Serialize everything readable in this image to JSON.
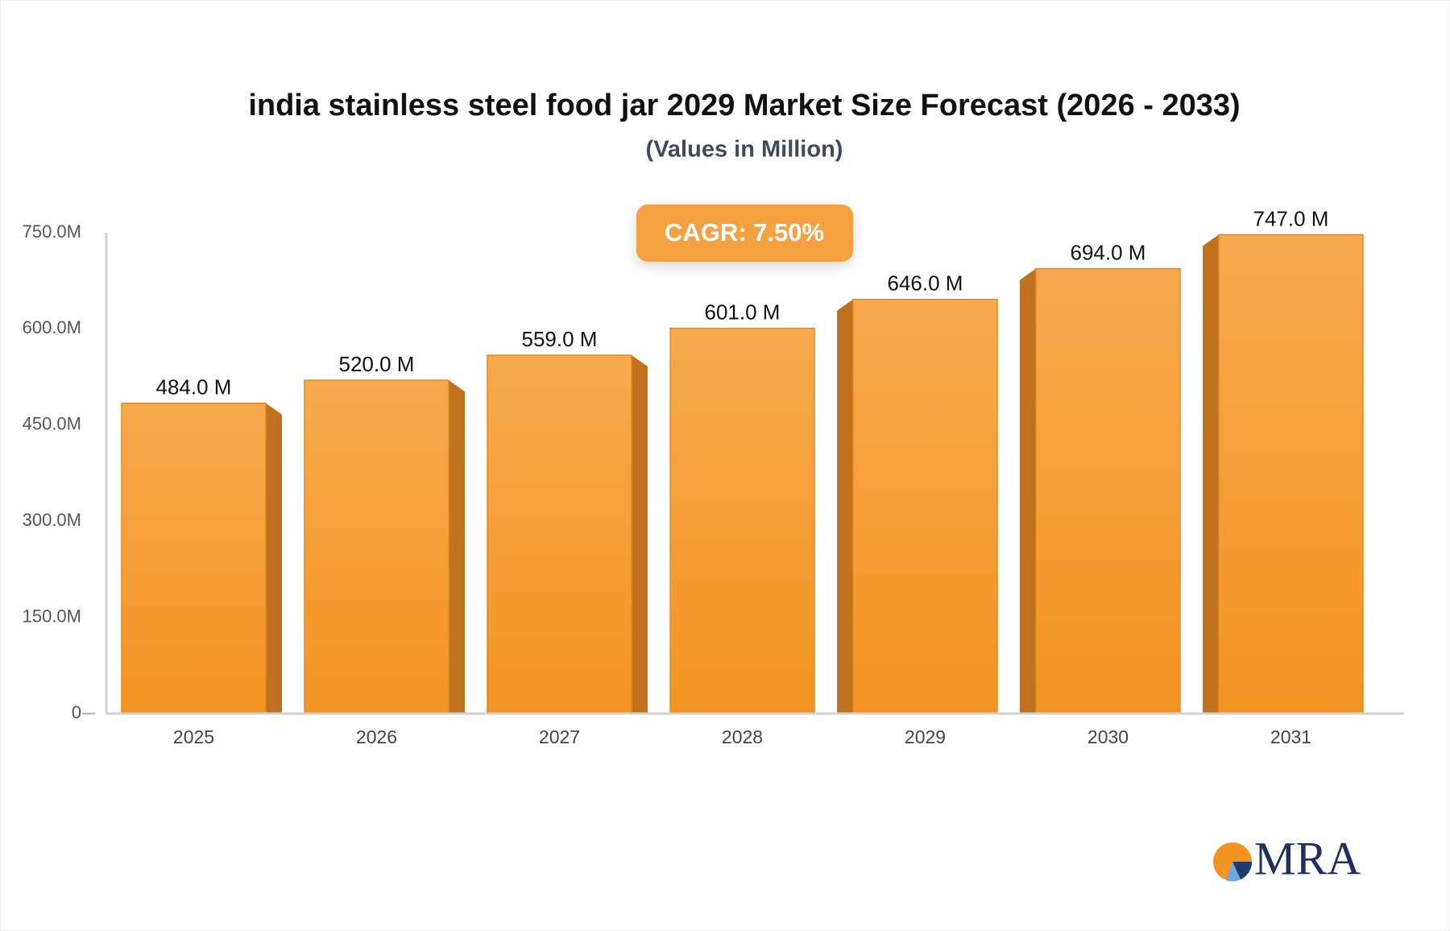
{
  "chart_data": {
    "type": "bar",
    "title": "india stainless steel food jar 2029 Market Size Forecast (2026 - 2033)",
    "subtitle": "(Values in Million)",
    "annotation": "CAGR: 7.50%",
    "categories": [
      "2025",
      "2026",
      "2027",
      "2028",
      "2029",
      "2030",
      "2031"
    ],
    "values": [
      484,
      520,
      559,
      601,
      646,
      694,
      747
    ],
    "value_labels": [
      "484.0 M",
      "520.0 M",
      "559.0 M",
      "601.0 M",
      "646.0 M",
      "694.0 M",
      "747.0 M"
    ],
    "color": "#f59a2c",
    "ylim": [
      0,
      750
    ],
    "yticks": [
      0,
      {
        "value": 150,
        "label": "150.0M"
      },
      {
        "value": 300,
        "label": "300.0M"
      },
      {
        "value": 450,
        "label": "450.0M"
      },
      {
        "value": 600,
        "label": "600.0M"
      },
      {
        "value": 750,
        "label": "750.0M"
      }
    ],
    "grid": false
  },
  "logo": "MRA"
}
